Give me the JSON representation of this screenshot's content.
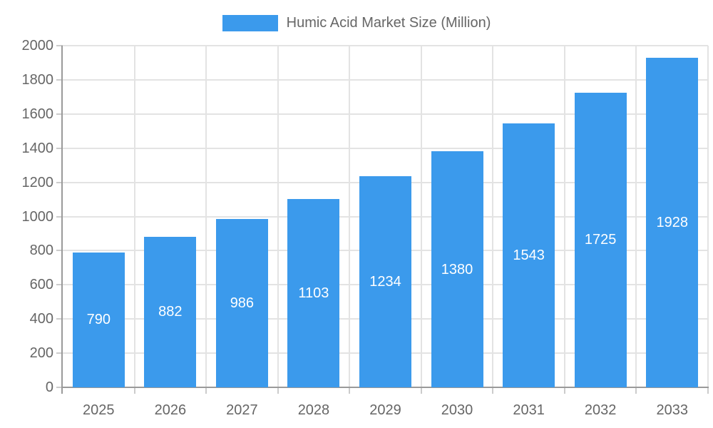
{
  "legend": {
    "label": "Humic Acid Market Size (Million)"
  },
  "chart_data": {
    "type": "bar",
    "title": "Humic Acid Market Size (Million)",
    "series_name": "Humic Acid Market Size (Million)",
    "categories": [
      "2025",
      "2026",
      "2027",
      "2028",
      "2029",
      "2030",
      "2031",
      "2032",
      "2033"
    ],
    "values": [
      790,
      882,
      986,
      1103,
      1234,
      1380,
      1543,
      1725,
      1928
    ],
    "value_labels": [
      "790",
      "882",
      "986",
      "1103",
      "1234",
      "1380",
      "1543",
      "1725",
      "1928"
    ],
    "xlabel": "",
    "ylabel": "",
    "ylim": [
      0,
      2000
    ],
    "ytick_step": 200,
    "ytick_labels": [
      "0",
      "200",
      "400",
      "600",
      "800",
      "1000",
      "1200",
      "1400",
      "1600",
      "1800",
      "2000"
    ],
    "grid": true,
    "legend_position": "top",
    "value_labels_inside_bars": true
  },
  "colors": {
    "accent": "#3B9AEC",
    "axis_line": "#9a9a9a",
    "gridline": "#e3e3e3",
    "tick": "#cccccc",
    "text": "#666666",
    "value_label": "#ffffff",
    "background": "#ffffff"
  }
}
